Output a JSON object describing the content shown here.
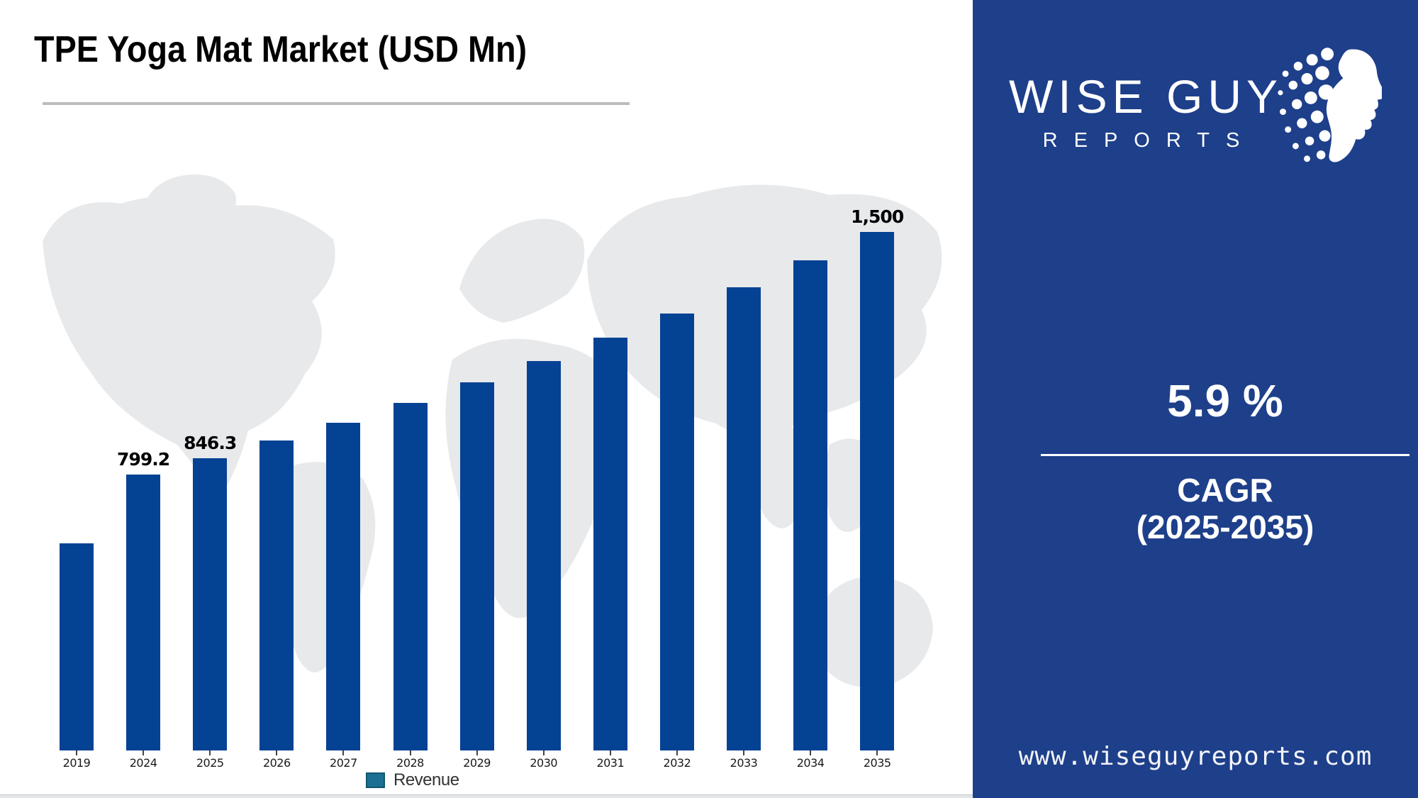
{
  "title": "TPE Yoga Mat Market (USD Mn)",
  "chart_data": {
    "type": "bar",
    "title": "TPE Yoga Mat Market (USD Mn)",
    "categories": [
      "2019",
      "2024",
      "2025",
      "2026",
      "2027",
      "2028",
      "2029",
      "2030",
      "2031",
      "2032",
      "2033",
      "2034",
      "2035"
    ],
    "values": [
      600,
      799.2,
      846.3,
      896,
      949,
      1005,
      1064,
      1127,
      1194,
      1264,
      1339,
      1418,
      1500
    ],
    "bar_labels": [
      "",
      "799.2",
      "846.3",
      "",
      "",
      "",
      "",
      "",
      "",
      "",
      "",
      "",
      "1,500"
    ],
    "xlabel": "",
    "ylabel": "",
    "ylim": [
      0,
      1540
    ],
    "grid": false,
    "bar_color": "#044294",
    "legend": {
      "label": "Revenue",
      "position": "bottom-center",
      "swatch_color": "#1b7092"
    }
  },
  "sidebar": {
    "bg_color": "#1e3f8a",
    "logo_line1": "WISE GUY",
    "logo_line2": "REPORTS",
    "cagr_value": "5.9 %",
    "cagr_label_line1": "CAGR",
    "cagr_label_line2": "(2025-2035)",
    "website": "www.wiseguyreports.com"
  },
  "colors": {
    "map_fill": "#e7e9eb",
    "title_rule": "#bcbcbc",
    "year_label": "#1a1a1a"
  }
}
